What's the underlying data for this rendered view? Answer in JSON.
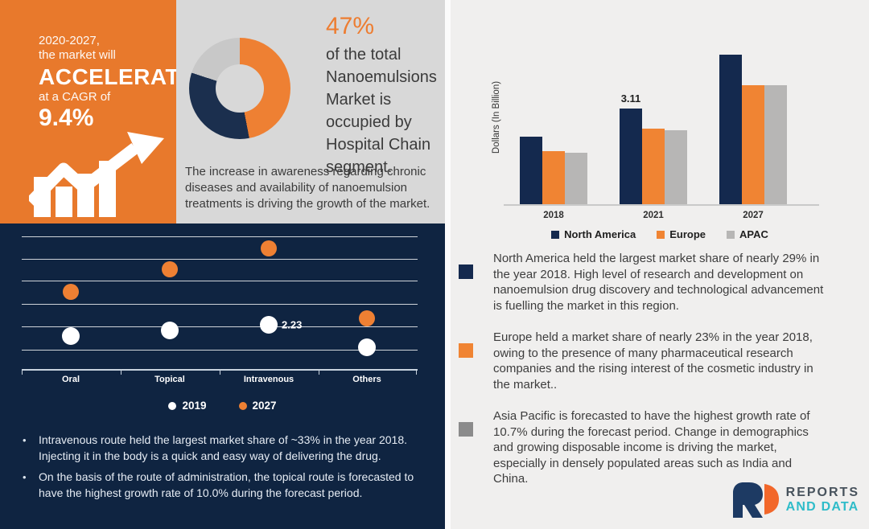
{
  "colors": {
    "orange": "#e8792c",
    "navy": "#0f2441",
    "bar_navy": "#14294e",
    "bar_orange": "#f08433",
    "bar_gray": "#b7b6b5",
    "donut_orange": "#ee8033",
    "donut_navy": "#1b2f4e",
    "donut_gray": "#c8c8c8",
    "insight_gray": "#8b8b8b",
    "stat_orange": "#ed7d31",
    "logo_teal": "#2fbcc9",
    "logo_navy": "#1d3a63",
    "logo_orange": "#f2672a"
  },
  "infographic": {
    "cagr_block": {
      "line1": "2020-2027,",
      "line2": "the market will",
      "line3": "ACCELERATE",
      "line4": "at a CAGR of",
      "line5": "9.4%"
    },
    "donut": {
      "stat": "47%",
      "caption": "of the total Nanoemulsions Market is occupied by Hospital Chain segment."
    },
    "gray_paragraph": "The increase in awareness regarding chronic diseases and availability of nanoemulsion treatments is driving the growth of the market.",
    "route_bullets": [
      "Intravenous route held the largest market share of ~33% in the year 2018. Injecting it in the body is a quick and easy way of delivering the drug.",
      "On the basis of the route of administration, the topical route is forecasted to have the highest growth rate of 10.0% during the forecast period."
    ],
    "region_insights": [
      {
        "marker_color": "#14294e",
        "text": "North America held the largest market share of nearly 29% in the year 2018. High level of research and development on nanoemulsion drug discovery and technological advancement is fuelling the market in this region."
      },
      {
        "marker_color": "#f08433",
        "text": "Europe held a market share of nearly 23% in the year 2018, owing to the presence of many pharmaceutical research companies and the rising interest of the cosmetic industry in the market.."
      },
      {
        "marker_color": "#8b8b8b",
        "text": "Asia Pacific is forecasted to have the highest growth rate of 10.7% during the forecast period. Change in demographics and growing disposable income is driving the market, especially in densely populated areas such as India and China."
      }
    ],
    "logo": {
      "line1": "REPORTS",
      "line2": "AND DATA"
    }
  },
  "chart_data": [
    {
      "type": "pie",
      "style": "donut",
      "caption": "47% of the total Nanoemulsions Market is occupied by Hospital Chain segment.",
      "segments": [
        {
          "label": "Hospital Chain",
          "value": 47,
          "color": "#ee8033"
        },
        {
          "label": "unlabeled segment",
          "value": 33,
          "color": "#1b2f4e"
        },
        {
          "label": "unlabeled segment",
          "value": 20,
          "color": "#c8c8c8"
        }
      ],
      "note": "Only the 47% slice is labeled in the image; other slice values estimated from arc angles."
    },
    {
      "type": "scatter",
      "categories": [
        "Oral",
        "Topical",
        "Intravenous",
        "Others"
      ],
      "series": [
        {
          "name": "2019",
          "color": "#ffffff",
          "values": [
            1.98,
            2.11,
            2.23,
            1.73
          ]
        },
        {
          "name": "2027",
          "color": "#ee8033",
          "values": [
            2.96,
            3.45,
            3.91,
            2.37
          ]
        }
      ],
      "point_label": {
        "series": "2019",
        "category": "Intravenous",
        "text": "2.23"
      },
      "grid": true,
      "legend_position": "bottom",
      "note": "Only the value 2.23 is labeled in the image; all other point values estimated from gridlines."
    },
    {
      "type": "bar",
      "categories": [
        "2018",
        "2021",
        "2027"
      ],
      "series": [
        {
          "name": "North America",
          "color": "#14294e",
          "values": [
            2.19,
            3.11,
            4.86
          ]
        },
        {
          "name": "Europe",
          "color": "#f08433",
          "values": [
            1.72,
            2.45,
            3.87
          ]
        },
        {
          "name": "APAC",
          "color": "#b7b6b5",
          "values": [
            1.67,
            2.4,
            3.86
          ]
        }
      ],
      "ylabel": "Dollars (In Billion)",
      "ylim": [
        0,
        5.2
      ],
      "data_labels": [
        {
          "series": "North America",
          "category": "2021",
          "text": "3.11"
        }
      ],
      "legend_position": "bottom",
      "note": "Only 3.11 is labeled in the image; other bar values estimated from bar heights."
    }
  ]
}
